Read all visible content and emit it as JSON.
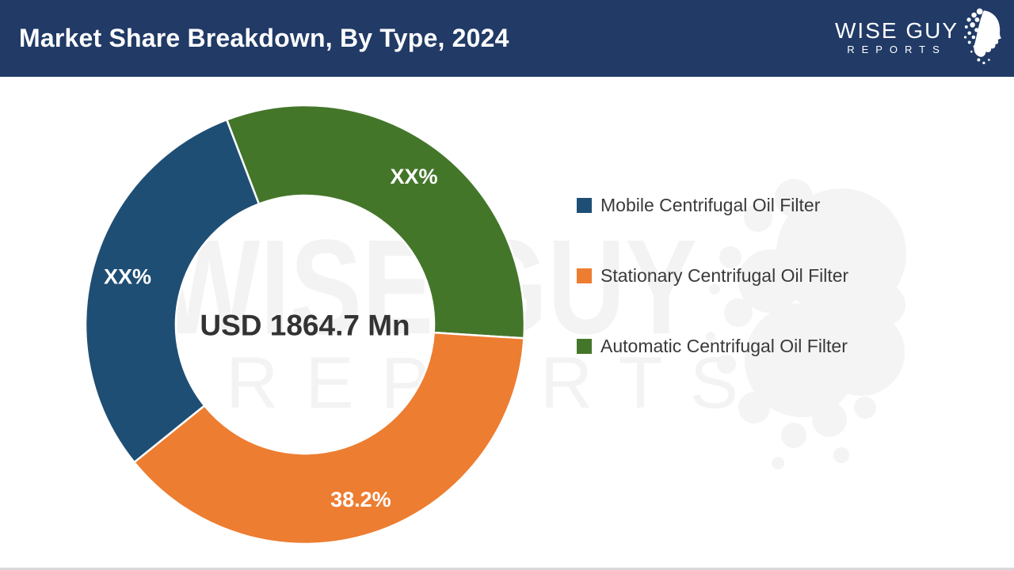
{
  "header": {
    "title": "Market Share Breakdown, By Type, 2024",
    "logo": {
      "line1": "WISE GUY",
      "line2": "REPORTS"
    },
    "bg_color": "#213A66"
  },
  "watermark": {
    "line1": "WISE GUY",
    "line2": "REPORTS"
  },
  "chart_data": {
    "type": "pie",
    "variant": "donut",
    "title": "Market Share Breakdown, By Type, 2024",
    "center_label": "USD 1864.7 Mn",
    "start_angle_deg": -20.9,
    "inner_radius_ratio": 0.59,
    "legend_position": "right",
    "segments": [
      {
        "id": "automatic",
        "label": "Automatic Centrifugal Oil Filter",
        "value_pct": 31.8,
        "display_label": "XX%",
        "color": "#44762A"
      },
      {
        "id": "stationary",
        "label": "Stationary Centrifugal Oil Filter",
        "value_pct": 38.2,
        "display_label": "38.2%",
        "color": "#ED7D31"
      },
      {
        "id": "mobile",
        "label": "Mobile Centrifugal Oil Filter",
        "value_pct": 30.0,
        "display_label": "XX%",
        "color": "#1F4E74"
      }
    ]
  },
  "colors": {
    "title_text": "#ffffff",
    "center_text": "#333333",
    "legend_text": "#3a3a3a"
  }
}
